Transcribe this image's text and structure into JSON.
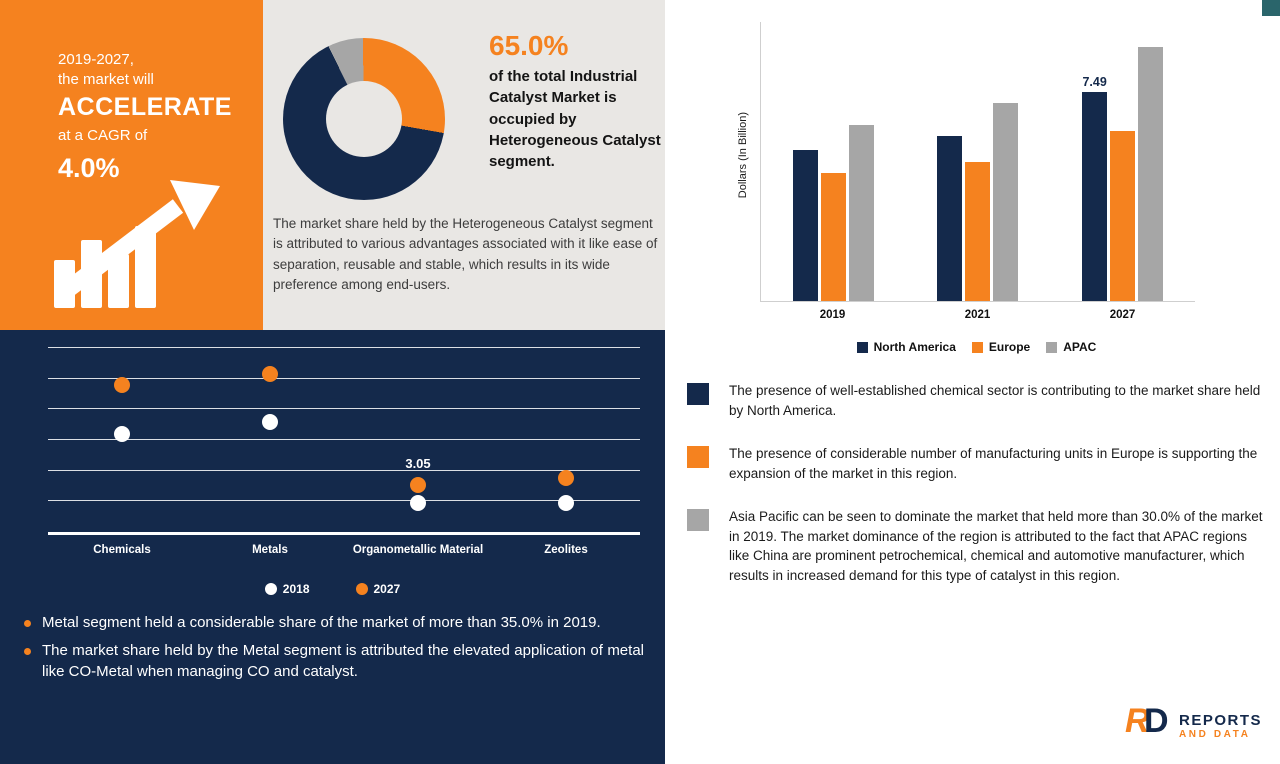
{
  "palette": {
    "orange": "#f5821f",
    "navy": "#14294b",
    "gray_block": "#e9e7e4",
    "bar_gray": "#a6a6a6",
    "teal_accent": "#2a656b"
  },
  "cagr_panel": {
    "period": "2019-2027,",
    "line2": "the market will",
    "accelerate": "ACCELERATE",
    "line4": "at a CAGR of",
    "cagr_value": "4.0%"
  },
  "heterogeneous_panel": {
    "highlight_value": "65.0%",
    "headline": "of the total Industrial Catalyst Market is occupied by Heterogeneous Catalyst segment.",
    "body": "The market share held by the Heterogeneous Catalyst segment is attributed to various advantages associated with it like ease of separation, reusable and stable, which results in its wide preference among end-users."
  },
  "segment_section": {
    "bullets": [
      "Metal segment held a considerable share of the market of more than 35.0% in 2019.",
      "The market share held by the Metal segment is attributed the elevated application of metal like CO-Metal when managing CO and catalyst."
    ]
  },
  "region_section": {
    "bullets": [
      {
        "color": "#14294b",
        "text": "The presence of well-established chemical sector is contributing to the market share held by North America."
      },
      {
        "color": "#f5821f",
        "text": "The presence of considerable number of manufacturing units in Europe is supporting the expansion of the market in this region."
      },
      {
        "color": "#a6a6a6",
        "text": "Asia Pacific can be seen to dominate the market that held more than 30.0% of the market in 2019. The market dominance of the region is attributed to the fact that APAC regions like China are prominent petrochemical, chemical and automotive manufacturer, which results in increased demand for this type of catalyst in this region."
      }
    ]
  },
  "logo": {
    "line1": "REPORTS",
    "line2": "AND DATA"
  },
  "chart_data": [
    {
      "type": "pie",
      "donut": true,
      "title": "Heterogeneous Catalyst segment share",
      "slices": [
        {
          "label": "",
          "value": 7.0,
          "color": "#a6a6a6"
        },
        {
          "label": "",
          "value": 28.0,
          "color": "#f5821f"
        },
        {
          "label": "Heterogeneous Catalyst",
          "value": 65.0,
          "color": "#14294b"
        }
      ],
      "annotation": "65.0% of the total Industrial Catalyst Market is occupied by Heterogeneous Catalyst segment."
    },
    {
      "type": "scatter",
      "categories": [
        "Chemicals",
        "Metals",
        "Organometallic Material",
        "Zeolites"
      ],
      "series": [
        {
          "name": "2018",
          "color": "#ffffff",
          "values": [
            6.4,
            7.2,
            1.9,
            1.9
          ]
        },
        {
          "name": "2027",
          "color": "#f5821f",
          "values": [
            9.6,
            10.3,
            3.05,
            3.5
          ]
        }
      ],
      "ylim": [
        0,
        12
      ],
      "gridline_step": 2,
      "grid": true,
      "legend_position": "bottom",
      "data_labels": [
        {
          "series": "2027",
          "category": "Organometallic Material",
          "text": "3.05"
        }
      ]
    },
    {
      "type": "bar",
      "categories": [
        "2019",
        "2021",
        "2027"
      ],
      "series": [
        {
          "name": "North America",
          "color": "#14294b",
          "values": [
            5.4,
            5.9,
            7.49
          ]
        },
        {
          "name": "Europe",
          "color": "#f5821f",
          "values": [
            4.6,
            5.0,
            6.1
          ]
        },
        {
          "name": "APAC",
          "color": "#a6a6a6",
          "values": [
            6.3,
            7.1,
            9.1
          ]
        }
      ],
      "ylabel": "Dollars (In Billion)",
      "ylim": [
        0,
        10
      ],
      "legend_position": "bottom",
      "data_labels": [
        {
          "series": "North America",
          "category": "2027",
          "text": "7.49"
        }
      ]
    }
  ]
}
